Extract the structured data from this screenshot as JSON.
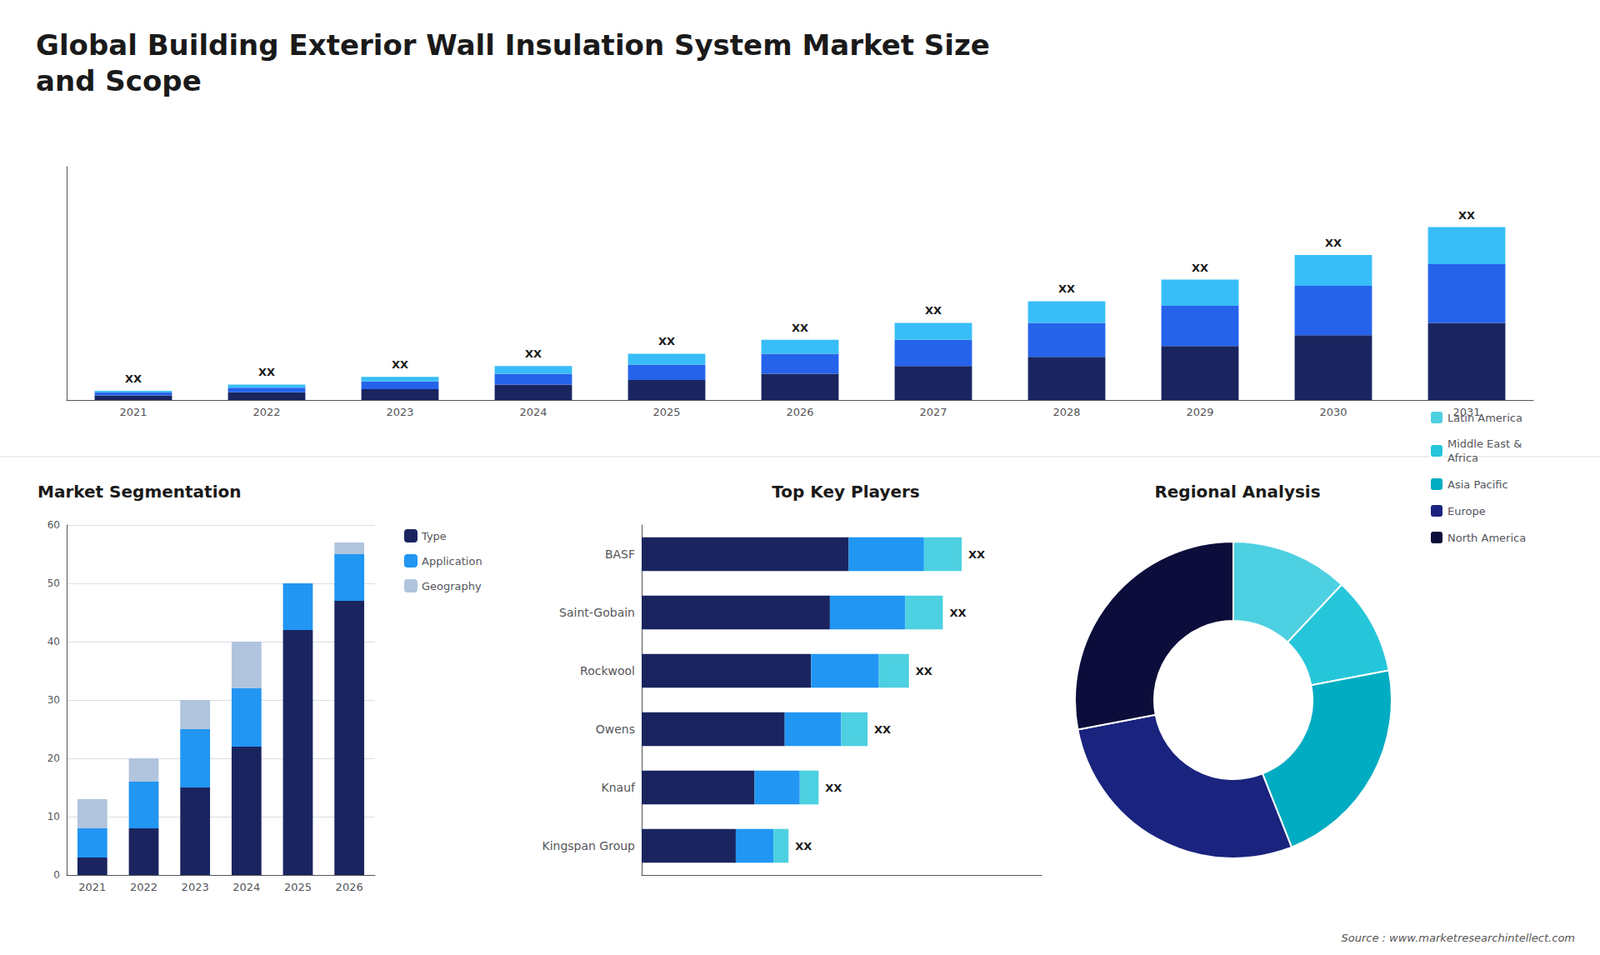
{
  "chart_data": [
    {
      "type": "bar",
      "title": "Global Building Exterior Wall Insulation System Market Size\nand Scope",
      "stacked": true,
      "categories": [
        "2021",
        "2022",
        "2023",
        "2024",
        "2025",
        "2026",
        "2027",
        "2028",
        "2029",
        "2030",
        "2031"
      ],
      "series": [
        {
          "color": "#1a2560",
          "values": [
            1.5,
            2.5,
            3.5,
            5.0,
            6.5,
            8.5,
            11.0,
            14.0,
            17.5,
            21.0,
            25.0
          ]
        },
        {
          "color": "#2563eb",
          "values": [
            1.0,
            1.5,
            2.5,
            3.5,
            5.0,
            6.5,
            8.5,
            11.0,
            13.0,
            16.0,
            19.0
          ]
        },
        {
          "color": "#38bdf8",
          "values": [
            0.5,
            1.0,
            1.5,
            2.5,
            3.5,
            4.5,
            5.5,
            7.0,
            8.5,
            10.0,
            12.0
          ]
        }
      ],
      "annotations": [
        "XX",
        "XX",
        "XX",
        "XX",
        "XX",
        "XX",
        "XX",
        "XX",
        "XX",
        "XX",
        "XX"
      ],
      "ylim": [
        0,
        75.6
      ],
      "grid": false,
      "tick_labels": "x"
    },
    {
      "type": "bar",
      "title": "Market Segmentation",
      "stacked": true,
      "categories": [
        "2021",
        "2022",
        "2023",
        "2024",
        "2025",
        "2026"
      ],
      "series": [
        {
          "name": "Type",
          "color": "#1a2560",
          "values": [
            3,
            8,
            15,
            22,
            42,
            47
          ]
        },
        {
          "name": "Application",
          "color": "#2196f3",
          "values": [
            5,
            8,
            10,
            10,
            8,
            8
          ]
        },
        {
          "name": "Geography",
          "color": "#b0c4de",
          "values": [
            5,
            4,
            5,
            8,
            0,
            2
          ]
        }
      ],
      "ylim": [
        0,
        60
      ],
      "yticks": [
        0,
        10,
        20,
        30,
        40,
        50,
        60
      ],
      "grid": true,
      "legend": "right"
    },
    {
      "type": "bar",
      "orientation": "horizontal",
      "title": "Top Key Players",
      "stacked": true,
      "categories": [
        "BASF",
        "Saint-Gobain",
        "Rockwool",
        "Owens",
        "Knauf",
        "Kingspan Group"
      ],
      "series": [
        {
          "color": "#1a2560",
          "values": [
            55,
            50,
            45,
            38,
            30,
            25
          ]
        },
        {
          "color": "#2196f3",
          "values": [
            20,
            20,
            18,
            15,
            12,
            10
          ]
        },
        {
          "color": "#4dd0e1",
          "values": [
            10,
            10,
            8,
            7,
            5,
            4
          ]
        }
      ],
      "annotations": [
        "XX",
        "XX",
        "XX",
        "XX",
        "XX",
        "XX"
      ],
      "xlim": [
        0,
        106.25
      ],
      "grid": false,
      "tick_labels": "y"
    },
    {
      "type": "donut",
      "title": "Regional Analysis",
      "categories": [
        "Latin America",
        "Middle East &\nAfrica",
        "Asia Pacific",
        "Europe",
        "North America"
      ],
      "values": [
        12,
        10,
        22,
        28,
        28
      ],
      "colors": [
        "#4dd0e1",
        "#26c6da",
        "#00acc1",
        "#1a237e",
        "#0d0d3b"
      ],
      "legend": "right",
      "annotations": [
        "Source : www.marketresearchintellect.com"
      ]
    }
  ]
}
